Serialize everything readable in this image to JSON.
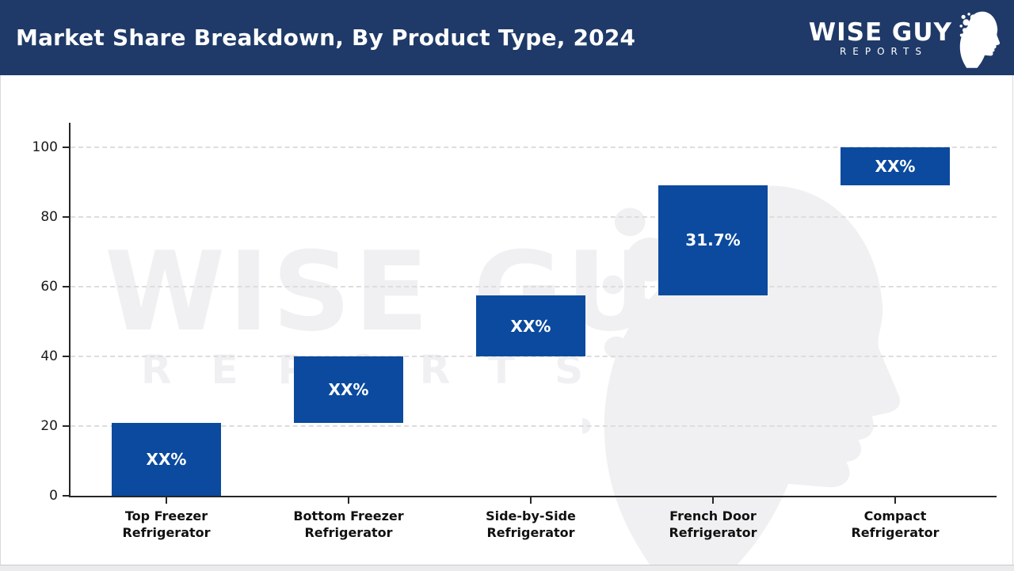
{
  "header": {
    "title": "Market Share Breakdown, By Product Type, 2024",
    "logo": {
      "line1": "WISE GUY",
      "line2": "REPORTS"
    }
  },
  "watermark": {
    "line1": "WISE GUY",
    "line2": "REPORTS"
  },
  "chart_data": {
    "type": "bar",
    "subtype": "floating-waterfall",
    "title": "Market Share Breakdown, By Product Type, 2024",
    "categories": [
      "Top Freezer Refrigerator",
      "Bottom Freezer Refrigerator",
      "Side-by-Side Refrigerator",
      "French Door Refrigerator",
      "Compact Refrigerator"
    ],
    "category_lines": [
      [
        "Top Freezer",
        "Refrigerator"
      ],
      [
        "Bottom Freezer",
        "Refrigerator"
      ],
      [
        "Side-by-Side",
        "Refrigerator"
      ],
      [
        "French Door",
        "Refrigerator"
      ],
      [
        "Compact",
        "Refrigerator"
      ]
    ],
    "segments": [
      {
        "category": "Top Freezer Refrigerator",
        "start": 0,
        "end": 21,
        "value": 21,
        "label": "XX%"
      },
      {
        "category": "Bottom Freezer Refrigerator",
        "start": 21,
        "end": 40,
        "value": 19,
        "label": "XX%"
      },
      {
        "category": "Side-by-Side Refrigerator",
        "start": 40,
        "end": 57.5,
        "value": 17.5,
        "label": "XX%"
      },
      {
        "category": "French Door Refrigerator",
        "start": 57.5,
        "end": 89.2,
        "value": 31.7,
        "label": "31.7%"
      },
      {
        "category": "Compact Refrigerator",
        "start": 89.2,
        "end": 100,
        "value": 10.8,
        "label": "XX%"
      }
    ],
    "yticks": [
      0,
      20,
      40,
      60,
      80,
      100
    ],
    "ylim": [
      0,
      105
    ],
    "xlabel": "",
    "ylabel": "",
    "grid": "horizontal-dashed",
    "legend": "none",
    "bar_color": "#0b4a9e",
    "bar_label_color": "#ffffff"
  },
  "colors": {
    "header_bg": "#1f3a68",
    "axis": "#262626",
    "grid": "#dddddd",
    "watermark": "#f0f0f2",
    "page_bg": "#ffffff"
  }
}
